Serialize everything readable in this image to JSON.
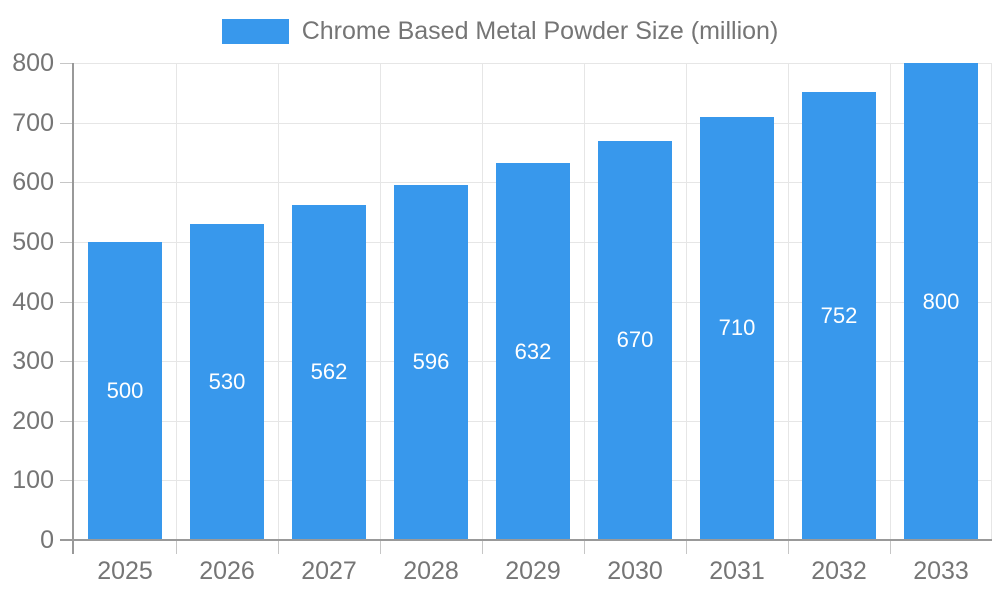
{
  "legend": {
    "label": "Chrome Based Metal Powder Size (million)"
  },
  "chart_data": {
    "type": "bar",
    "title": "Chrome Based Metal Powder Size (million)",
    "categories": [
      "2025",
      "2026",
      "2027",
      "2028",
      "2029",
      "2030",
      "2031",
      "2032",
      "2033"
    ],
    "values": [
      500,
      530,
      562,
      596,
      632,
      670,
      710,
      752,
      800
    ],
    "xlabel": "",
    "ylabel": "",
    "ylim": [
      0,
      800
    ],
    "yticks": [
      0,
      100,
      200,
      300,
      400,
      500,
      600,
      700,
      800
    ],
    "grid": true,
    "legend_position": "top-center",
    "bar_color": "#3898EC",
    "value_label_color": "#FFFFFF",
    "axis_text_color": "#757575",
    "grid_color": "#E6E6E6",
    "axis_line_color": "#999999"
  }
}
